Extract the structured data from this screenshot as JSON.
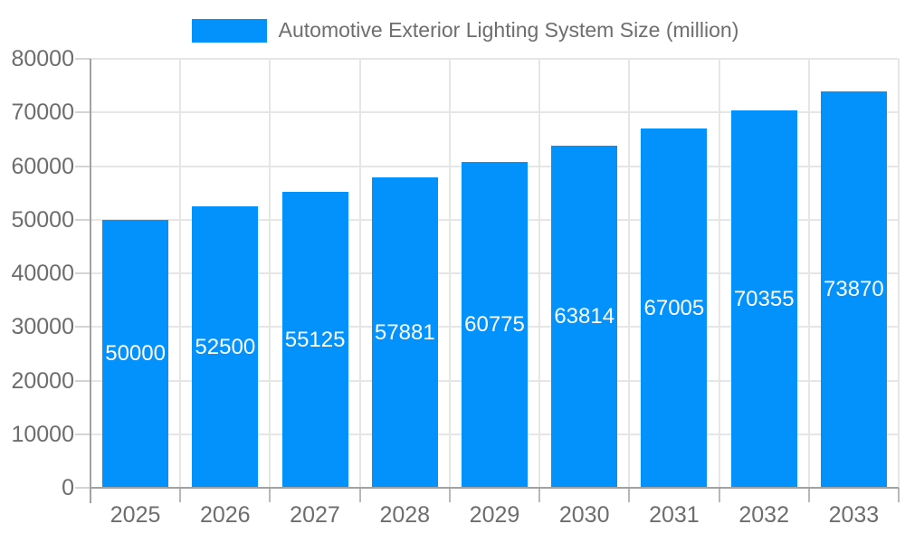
{
  "chart_data": {
    "type": "bar",
    "title": "Automotive Exterior Lighting System Size (million)",
    "categories": [
      "2025",
      "2026",
      "2027",
      "2028",
      "2029",
      "2030",
      "2031",
      "2032",
      "2033"
    ],
    "values": [
      50000,
      52500,
      55125,
      57881,
      60775,
      63814,
      67005,
      70355,
      73870
    ],
    "xlabel": "",
    "ylabel": "",
    "ylim": [
      0,
      80000
    ],
    "ytick_step": 10000,
    "yticks": [
      "0",
      "10000",
      "20000",
      "30000",
      "40000",
      "50000",
      "60000",
      "70000",
      "80000"
    ],
    "grid": true,
    "legend_position": "top",
    "bar_color": "#0391fc",
    "bar_label_color": "#ffffff",
    "grid_color": "#e6e6e6",
    "axis_line_color": "#a2a2a2",
    "y_tick_color": "#d4d4d4",
    "x_tick_color": "#b8b8b8",
    "text_color": "#6d6d6d",
    "legend_text_color": "#6e6e6e",
    "background_color": "#ffffff"
  }
}
